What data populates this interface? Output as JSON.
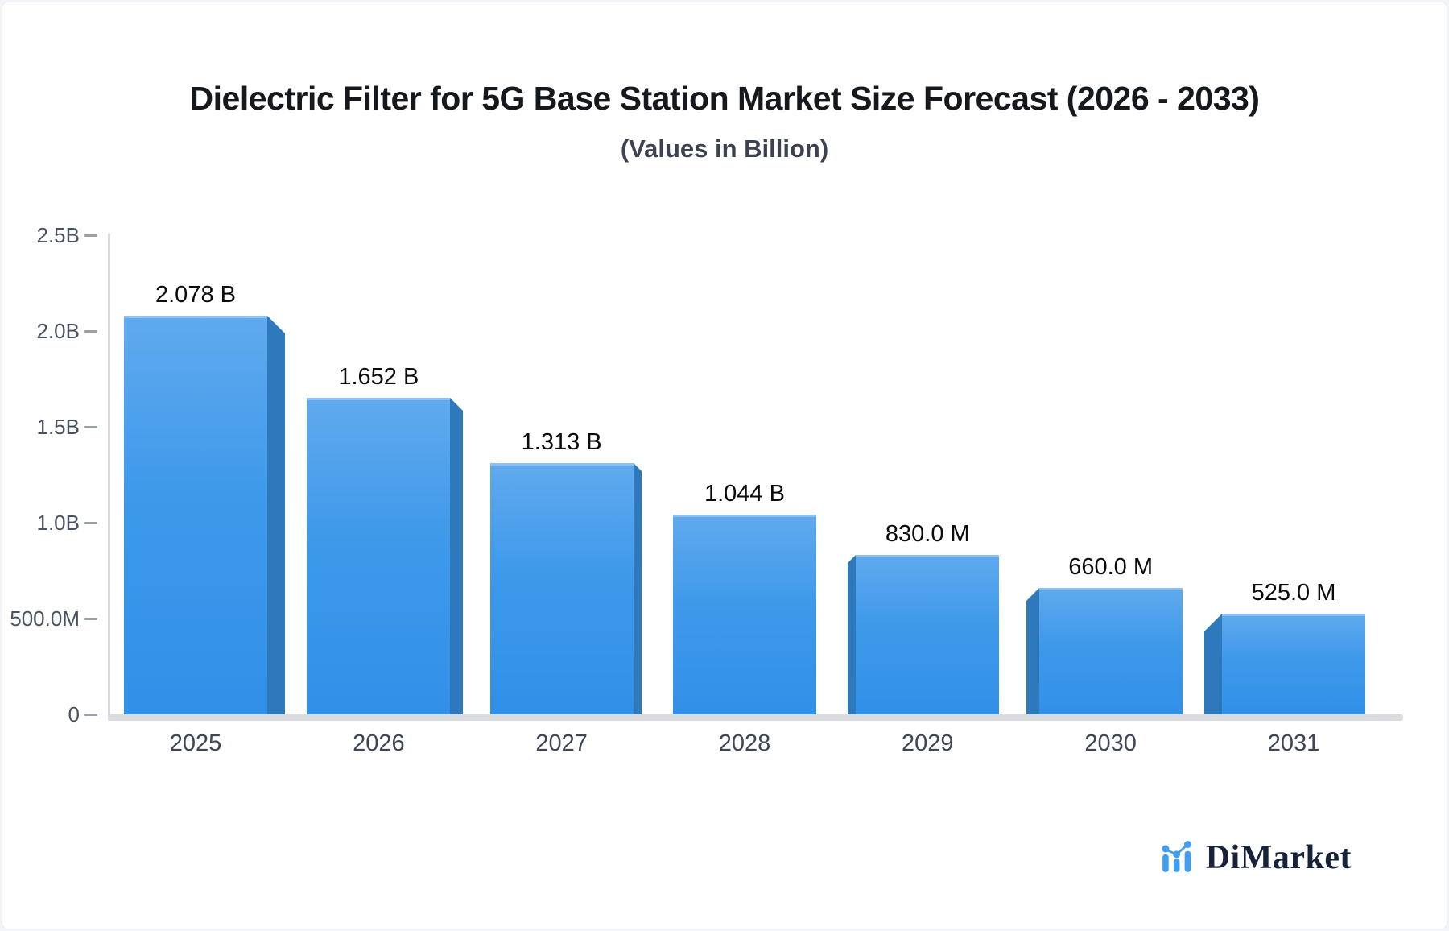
{
  "title": "Dielectric Filter for 5G Base Station Market Size Forecast (2026 - 2033)",
  "subtitle": "(Values in Billion)",
  "chart_data": {
    "type": "bar",
    "title": "Dielectric Filter for 5G Base Station Market Size Forecast (2026 - 2033)",
    "subtitle": "(Values in Billion)",
    "unit": "Billion",
    "categories": [
      "2025",
      "2026",
      "2027",
      "2028",
      "2029",
      "2030",
      "2031"
    ],
    "values": [
      2.078,
      1.652,
      1.313,
      1.044,
      0.83,
      0.66,
      0.525
    ],
    "value_labels": [
      "2.078 B",
      "1.652 B",
      "1.313 B",
      "1.044 B",
      "830.0 M",
      "660.0 M",
      "525.0 M"
    ],
    "ylim": [
      0,
      2.5
    ],
    "yticks": [
      {
        "value": 2.5,
        "label": "2.5B"
      },
      {
        "value": 2.0,
        "label": "2.0B"
      },
      {
        "value": 1.5,
        "label": "1.5B"
      },
      {
        "value": 1.0,
        "label": "1.0B"
      },
      {
        "value": 0.5,
        "label": "500.0M"
      },
      {
        "value": 0.0,
        "label": "0"
      }
    ],
    "grid": false,
    "legend": false,
    "colors": {
      "bar_face_top": "#60aaee",
      "bar_face_mid": "#3e99ea",
      "bar_face_bottom": "#3190e7",
      "bar_side": "#2e79bb",
      "axis_line": "#d6d9de",
      "tick_text": "#4a5261",
      "value_text": "#0b0b0b"
    }
  },
  "logo": {
    "text": "DiMarket",
    "icon": "bar-line-chart-icon",
    "icon_color": "#3f9ef2",
    "text_color": "#16233b"
  }
}
